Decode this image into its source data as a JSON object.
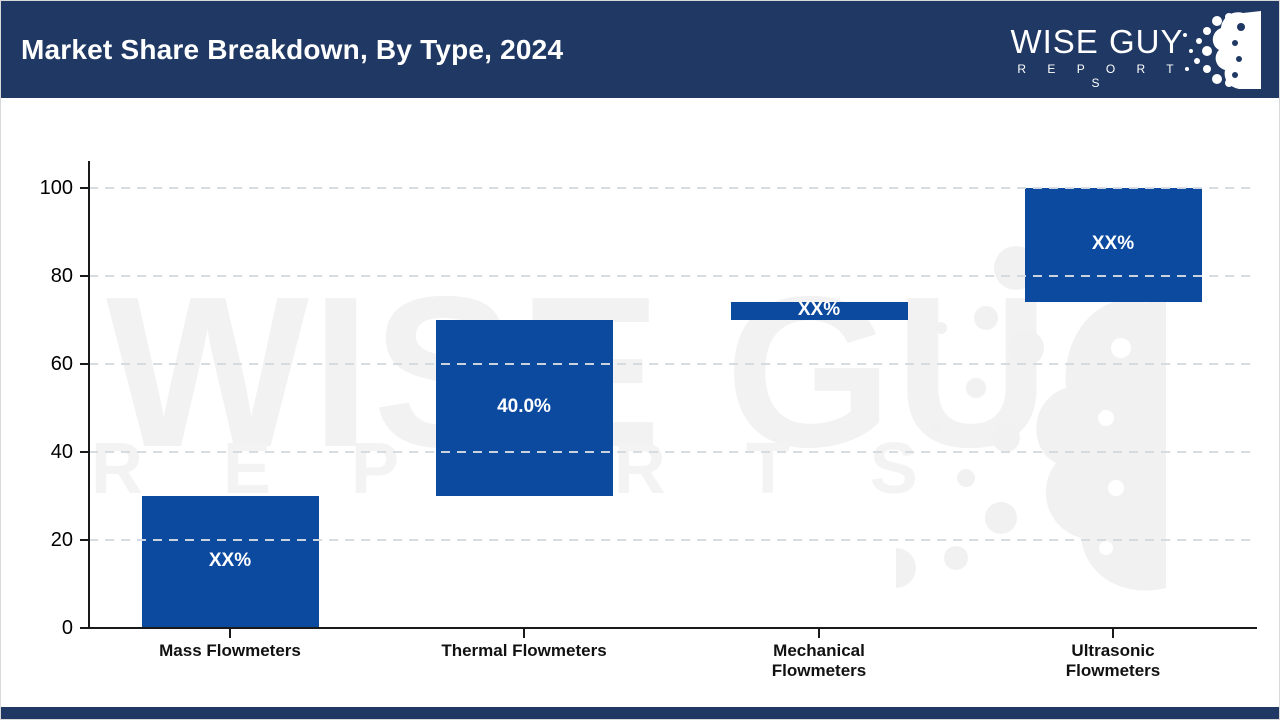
{
  "header": {
    "title": "Market Share Breakdown, By Type, 2024",
    "bg_color": "#1f3864",
    "logo": {
      "line1": "WISE GUY",
      "line2": "R E P O R T S"
    }
  },
  "watermark": {
    "line1": "WISE GU",
    "line2": "R E P O R T S"
  },
  "chart_data": {
    "type": "bar",
    "subtype": "waterfall-floating-bars",
    "title": "Market Share Breakdown, By Type, 2024",
    "categories": [
      "Mass Flowmeters",
      "Thermal Flowmeters",
      "Mechanical Flowmeters",
      "Ultrasonic Flowmeters"
    ],
    "category_lines": [
      [
        "Mass Flowmeters"
      ],
      [
        "Thermal Flowmeters"
      ],
      [
        "Mechanical",
        "Flowmeters"
      ],
      [
        "Ultrasonic",
        "Flowmeters"
      ]
    ],
    "segments": [
      {
        "category": "Mass Flowmeters",
        "start": 0,
        "end": 30,
        "label": "XX%"
      },
      {
        "category": "Thermal Flowmeters",
        "start": 30,
        "end": 70,
        "label": "40.0%"
      },
      {
        "category": "Mechanical Flowmeters",
        "start": 70,
        "end": 74,
        "label": "XX%"
      },
      {
        "category": "Ultrasonic Flowmeters",
        "start": 74,
        "end": 100,
        "label": "XX%"
      }
    ],
    "yticks": [
      0,
      20,
      40,
      60,
      80,
      100
    ],
    "ylim": [
      0,
      106
    ],
    "xlabel": "",
    "ylabel": "",
    "grid": "horizontal-dashed",
    "legend": "none",
    "bar_color": "#0c4aa0",
    "bar_label_color": "#ffffff",
    "axis_color": "#1a1a1a",
    "grid_color": "#d5dae2"
  },
  "footer": {
    "bg_color": "#1f3864"
  }
}
